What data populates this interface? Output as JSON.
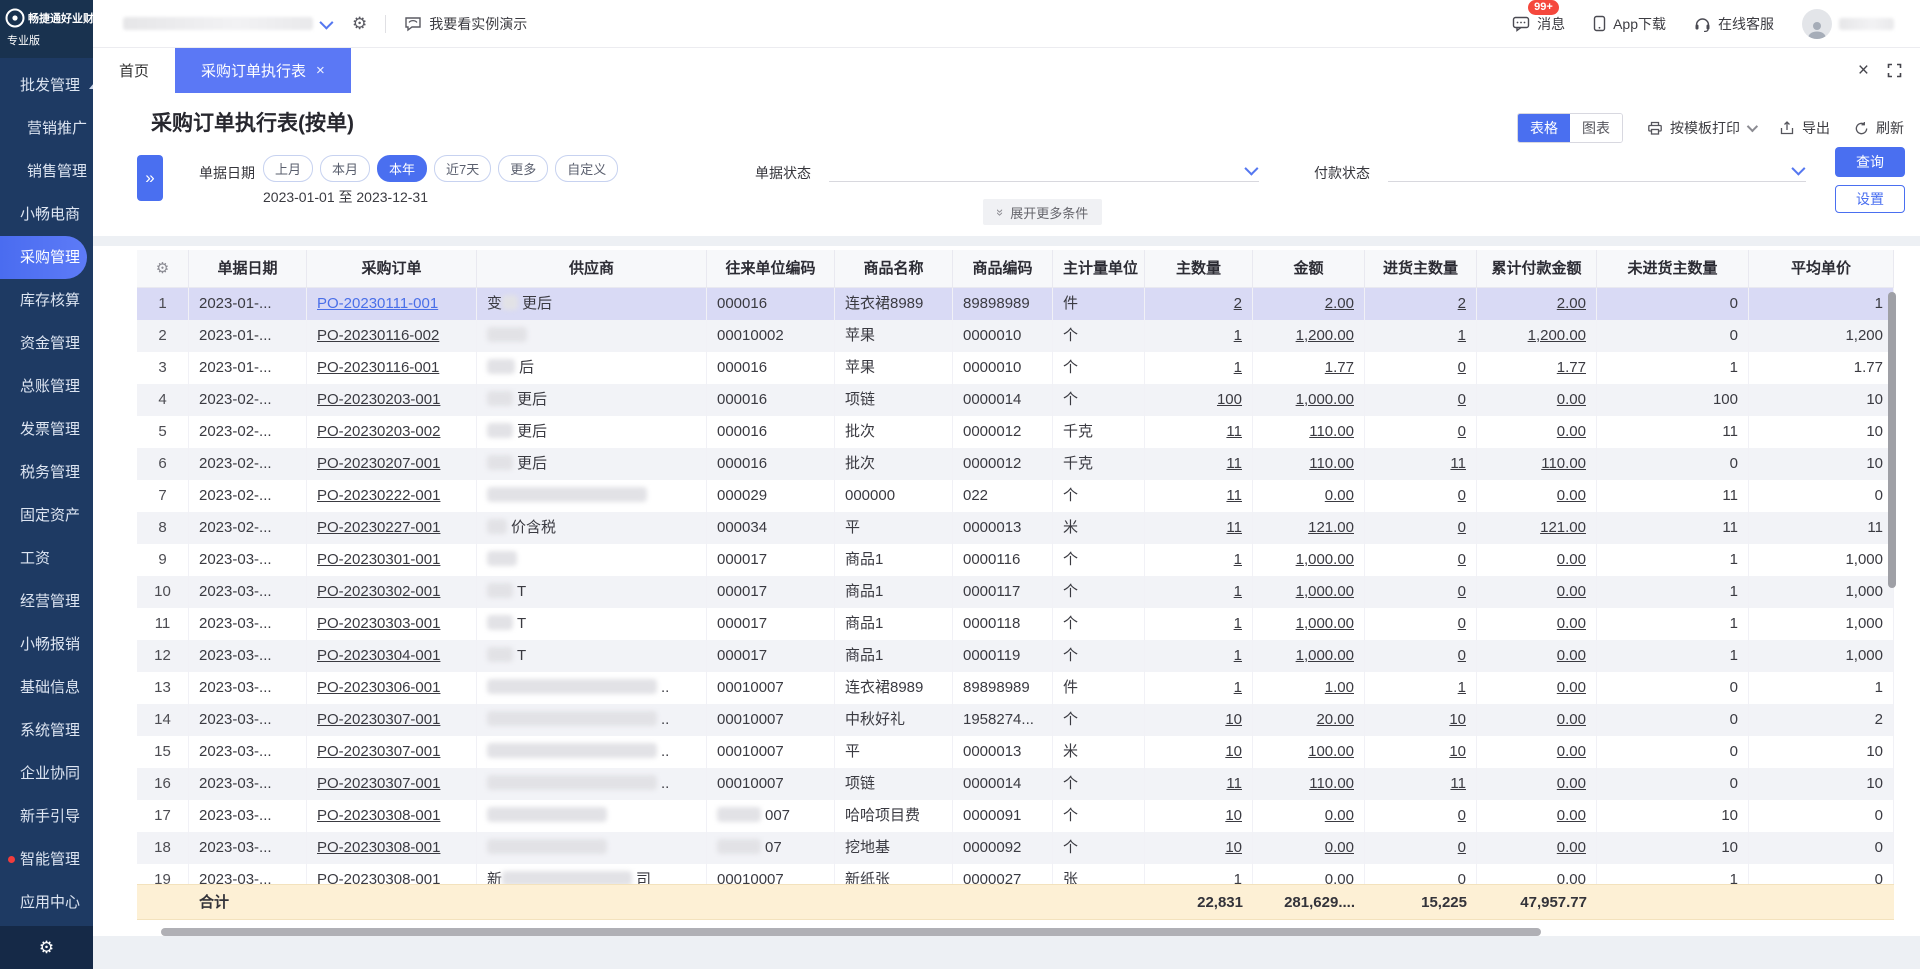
{
  "colors": {
    "accent": "#4a6ff0",
    "sidebar_bg": "#1e3a63",
    "tab_active": "#5b78f5",
    "link_blue": "#4a6fe8",
    "selected_row": "#d9daf5",
    "totals_bg": "#fdf0d5",
    "badge": "#f5483d"
  },
  "brand": {
    "name": "畅捷通好业财",
    "edition": "专业版"
  },
  "topbar": {
    "demo_label": "我要看实例演示",
    "messages_label": "消息",
    "messages_badge": "99+",
    "app_download_label": "App下载",
    "support_label": "在线客服"
  },
  "tabs": {
    "items": [
      {
        "label": "首页",
        "active": false,
        "closable": false
      },
      {
        "label": "采购订单执行表",
        "active": true,
        "closable": true
      }
    ]
  },
  "sidebar": {
    "items": [
      {
        "label": "批发管理",
        "expand": true
      },
      {
        "label": "营销推广",
        "indent": true
      },
      {
        "label": "销售管理",
        "indent": true
      },
      {
        "label": "小畅电商"
      },
      {
        "label": "采购管理",
        "active": true
      },
      {
        "label": "库存核算"
      },
      {
        "label": "资金管理"
      },
      {
        "label": "总账管理"
      },
      {
        "label": "发票管理"
      },
      {
        "label": "税务管理"
      },
      {
        "label": "固定资产"
      },
      {
        "label": "工资"
      },
      {
        "label": "经营管理"
      },
      {
        "label": "小畅报销"
      },
      {
        "label": "基础信息"
      },
      {
        "label": "系统管理"
      },
      {
        "label": "企业协同"
      },
      {
        "label": "新手引导"
      },
      {
        "label": "智能管理",
        "dot": true
      },
      {
        "label": "应用中心"
      }
    ]
  },
  "page": {
    "title": "采购订单执行表(按单)"
  },
  "toolbar": {
    "view_table": "表格",
    "view_chart": "图表",
    "print": "按模板打印",
    "export": "导出",
    "refresh": "刷新"
  },
  "filters": {
    "date_label": "单据日期",
    "pills": [
      {
        "label": "上月"
      },
      {
        "label": "本月"
      },
      {
        "label": "本年",
        "active": true
      },
      {
        "label": "近7天"
      },
      {
        "label": "更多"
      },
      {
        "label": "自定义"
      }
    ],
    "date_range": "2023-01-01 至 2023-12-31",
    "status_label": "单据状态",
    "payment_label": "付款状态",
    "query": "查询",
    "settings": "设置",
    "expand": "展开更多条件"
  },
  "table": {
    "columns": [
      "单据日期",
      "采购订单",
      "供应商",
      "往来单位编码",
      "商品名称",
      "商品编码",
      "主计量单位",
      "主数量",
      "金额",
      "进货主数量",
      "累计付款金额",
      "未进货主数量",
      "平均单价"
    ],
    "rows": [
      {
        "n": 1,
        "date": "2023-01-...",
        "po": "PO-20230111-001",
        "po_blue": true,
        "selected": true,
        "sup_pre": "变",
        "sup_blur": 16,
        "sup": "更后",
        "code": "000016",
        "name": "连衣裙8989",
        "sku": "89898989",
        "unit": "件",
        "qty": "2",
        "amt": "2.00",
        "recv": "2",
        "paid": "2.00",
        "unrecv": "0",
        "price": "1"
      },
      {
        "n": 2,
        "date": "2023-01-...",
        "po": "PO-20230116-002",
        "sup_blur": 40,
        "sup": "",
        "code": "00010002",
        "name": "苹果",
        "sku": "0000010",
        "unit": "个",
        "qty": "1",
        "amt": "1,200.00",
        "recv": "1",
        "paid": "1,200.00",
        "unrecv": "0",
        "price": "1,200"
      },
      {
        "n": 3,
        "date": "2023-01-...",
        "po": "PO-20230116-001",
        "sup_blur": 28,
        "sup": "后",
        "code": "000016",
        "name": "苹果",
        "sku": "0000010",
        "unit": "个",
        "qty": "1",
        "amt": "1.77",
        "recv": "0",
        "paid": "1.77",
        "unrecv": "1",
        "price": "1.77"
      },
      {
        "n": 4,
        "date": "2023-02-...",
        "po": "PO-20230203-001",
        "sup_blur": 26,
        "sup": "更后",
        "code": "000016",
        "name": "项链",
        "sku": "0000014",
        "unit": "个",
        "qty": "100",
        "amt": "1,000.00",
        "recv": "0",
        "paid": "0.00",
        "unrecv": "100",
        "price": "10"
      },
      {
        "n": 5,
        "date": "2023-02-...",
        "po": "PO-20230203-002",
        "sup_blur": 26,
        "sup": "更后",
        "code": "000016",
        "name": "批次",
        "sku": "0000012",
        "unit": "千克",
        "qty": "11",
        "amt": "110.00",
        "recv": "0",
        "paid": "0.00",
        "unrecv": "11",
        "price": "10"
      },
      {
        "n": 6,
        "date": "2023-02-...",
        "po": "PO-20230207-001",
        "sup_blur": 26,
        "sup": "更后",
        "code": "000016",
        "name": "批次",
        "sku": "0000012",
        "unit": "千克",
        "qty": "11",
        "amt": "110.00",
        "recv": "11",
        "paid": "110.00",
        "unrecv": "0",
        "price": "10"
      },
      {
        "n": 7,
        "date": "2023-02-...",
        "po": "PO-20230222-001",
        "sup_blur": 160,
        "sup": "",
        "code": "000029",
        "name": "000000",
        "sku": "022",
        "unit": "个",
        "qty": "11",
        "amt": "0.00",
        "recv": "0",
        "paid": "0.00",
        "unrecv": "11",
        "price": "0"
      },
      {
        "n": 8,
        "date": "2023-02-...",
        "po": "PO-20230227-001",
        "sup_blur": 20,
        "sup": "价含税",
        "code": "000034",
        "name": "平",
        "sku": "0000013",
        "unit": "米",
        "qty": "11",
        "amt": "121.00",
        "recv": "0",
        "paid": "121.00",
        "unrecv": "11",
        "price": "11"
      },
      {
        "n": 9,
        "date": "2023-03-...",
        "po": "PO-20230301-001",
        "sup_blur": 30,
        "sup": "",
        "code": "000017",
        "name": "商品1",
        "sku": "0000116",
        "unit": "个",
        "qty": "1",
        "amt": "1,000.00",
        "recv": "0",
        "paid": "0.00",
        "unrecv": "1",
        "price": "1,000"
      },
      {
        "n": 10,
        "date": "2023-03-...",
        "po": "PO-20230302-001",
        "sup_blur": 26,
        "sup": "T",
        "code": "000017",
        "name": "商品1",
        "sku": "0000117",
        "unit": "个",
        "qty": "1",
        "amt": "1,000.00",
        "recv": "0",
        "paid": "0.00",
        "unrecv": "1",
        "price": "1,000"
      },
      {
        "n": 11,
        "date": "2023-03-...",
        "po": "PO-20230303-001",
        "sup_blur": 26,
        "sup": "T",
        "code": "000017",
        "name": "商品1",
        "sku": "0000118",
        "unit": "个",
        "qty": "1",
        "amt": "1,000.00",
        "recv": "0",
        "paid": "0.00",
        "unrecv": "1",
        "price": "1,000"
      },
      {
        "n": 12,
        "date": "2023-03-...",
        "po": "PO-20230304-001",
        "sup_blur": 26,
        "sup": "T",
        "code": "000017",
        "name": "商品1",
        "sku": "0000119",
        "unit": "个",
        "qty": "1",
        "amt": "1,000.00",
        "recv": "0",
        "paid": "0.00",
        "unrecv": "1",
        "price": "1,000"
      },
      {
        "n": 13,
        "date": "2023-03-...",
        "po": "PO-20230306-001",
        "sup_blur": 170,
        "sup": "..",
        "code": "00010007",
        "name": "连衣裙8989",
        "sku": "89898989",
        "unit": "件",
        "qty": "1",
        "amt": "1.00",
        "recv": "1",
        "paid": "0.00",
        "unrecv": "0",
        "price": "1"
      },
      {
        "n": 14,
        "date": "2023-03-...",
        "po": "PO-20230307-001",
        "sup_blur": 170,
        "sup": "..",
        "code": "00010007",
        "name": "中秋好礼",
        "sku": "1958274...",
        "unit": "个",
        "qty": "10",
        "amt": "20.00",
        "recv": "10",
        "paid": "0.00",
        "unrecv": "0",
        "price": "2"
      },
      {
        "n": 15,
        "date": "2023-03-...",
        "po": "PO-20230307-001",
        "sup_blur": 170,
        "sup": "..",
        "code": "00010007",
        "name": "平",
        "sku": "0000013",
        "unit": "米",
        "qty": "10",
        "amt": "100.00",
        "recv": "10",
        "paid": "0.00",
        "unrecv": "0",
        "price": "10"
      },
      {
        "n": 16,
        "date": "2023-03-...",
        "po": "PO-20230307-001",
        "sup_blur": 170,
        "sup": "..",
        "code": "00010007",
        "name": "项链",
        "sku": "0000014",
        "unit": "个",
        "qty": "11",
        "amt": "110.00",
        "recv": "11",
        "paid": "0.00",
        "unrecv": "0",
        "price": "10"
      },
      {
        "n": 17,
        "date": "2023-03-...",
        "po": "PO-20230308-001",
        "sup_blur": 120,
        "sup": "",
        "code": "007",
        "code_blur": true,
        "name": "哈哈项目费",
        "sku": "0000091",
        "unit": "个",
        "qty": "10",
        "amt": "0.00",
        "recv": "0",
        "paid": "0.00",
        "unrecv": "10",
        "price": "0"
      },
      {
        "n": 18,
        "date": "2023-03-...",
        "po": "PO-20230308-001",
        "sup_blur": 120,
        "sup": "",
        "code": "07",
        "code_blur": true,
        "name": "挖地基",
        "sku": "0000092",
        "unit": "个",
        "qty": "10",
        "amt": "0.00",
        "recv": "0",
        "paid": "0.00",
        "unrecv": "10",
        "price": "0"
      },
      {
        "n": 19,
        "date": "2023-03-...",
        "po": "PO-20230308-001",
        "sup_pre": "新",
        "sup_blur": 130,
        "sup": "司",
        "code": "00010007",
        "name": "新纸张",
        "sku": "0000027",
        "unit": "张",
        "qty": "1",
        "amt": "0.00",
        "recv": "0",
        "paid": "0.00",
        "unrecv": "1",
        "price": "0"
      }
    ],
    "totals": {
      "label": "合计",
      "qty": "22,831",
      "amt": "281,629....",
      "recv": "15,225",
      "paid": "47,957.77"
    }
  }
}
